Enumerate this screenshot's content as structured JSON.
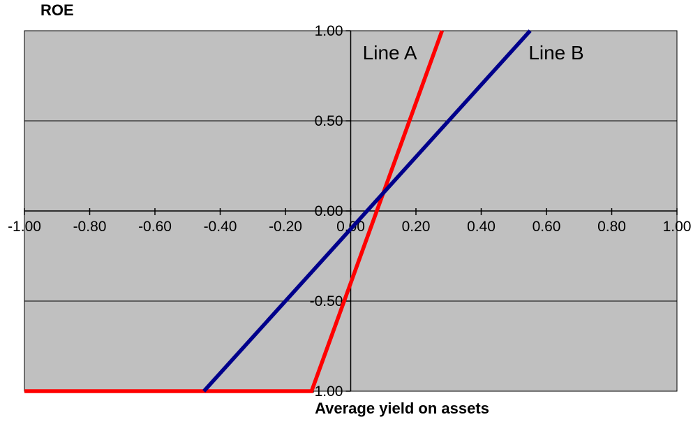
{
  "chart_data": {
    "type": "line",
    "title": "",
    "ylabel": "ROE",
    "xlabel": "Average yield on assets",
    "xlim": [
      -1.0,
      1.0
    ],
    "ylim": [
      -1.0,
      1.0
    ],
    "grid": "horizontal",
    "legend_position": "none",
    "plot_background": "#c0c0c0",
    "axis_color": "#000000",
    "x_ticks": [
      {
        "value": -1.0,
        "label": "-1.00"
      },
      {
        "value": -0.8,
        "label": "-0.80"
      },
      {
        "value": -0.6,
        "label": "-0.60"
      },
      {
        "value": -0.4,
        "label": "-0.40"
      },
      {
        "value": -0.2,
        "label": "-0.20"
      },
      {
        "value": 0.0,
        "label": "0.00"
      },
      {
        "value": 0.2,
        "label": "0.20"
      },
      {
        "value": 0.4,
        "label": "0.40"
      },
      {
        "value": 0.6,
        "label": "0.60"
      },
      {
        "value": 0.8,
        "label": "0.80"
      },
      {
        "value": 1.0,
        "label": "1.00"
      }
    ],
    "y_ticks": [
      {
        "value": 1.0,
        "label": "1.00"
      },
      {
        "value": 0.5,
        "label": "0.50"
      },
      {
        "value": 0.0,
        "label": "0.00"
      },
      {
        "value": -0.5,
        "label": "-0.50"
      },
      {
        "value": -1.0,
        "label": "-1.00"
      }
    ],
    "series": [
      {
        "name": "Line A",
        "color": "#ff0000",
        "width": 5.5,
        "points": [
          [
            -1.0,
            -1.0
          ],
          [
            -0.12,
            -1.0
          ],
          [
            0.28,
            1.0
          ]
        ]
      },
      {
        "name": "Line B",
        "color": "#00008b",
        "width": 5.5,
        "points": [
          [
            -0.45,
            -1.0
          ],
          [
            0.55,
            1.0
          ]
        ]
      }
    ],
    "annotations": [
      {
        "text": "Line A",
        "x": 0.12,
        "y": 0.88
      },
      {
        "text": "Line B",
        "x": 0.63,
        "y": 0.88
      }
    ]
  }
}
